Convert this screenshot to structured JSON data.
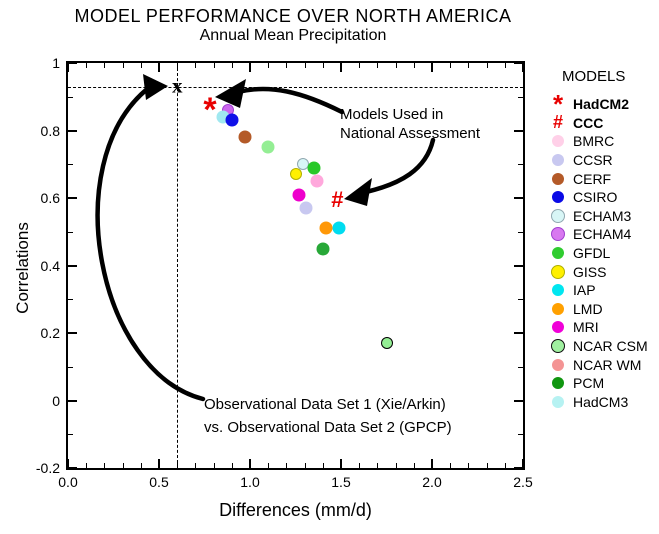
{
  "title": "MODEL PERFORMANCE OVER NORTH AMERICA",
  "subtitle": "Annual Mean Precipitation",
  "axes": {
    "x_label": "Differences (mm/d)",
    "y_label": "Correlations",
    "x_ticks": {
      "values": [
        0,
        0.5,
        1.0,
        1.5,
        2.0,
        2.5
      ],
      "labels": [
        "0.0",
        "0.5",
        "1.0",
        "1.5",
        "2.0",
        "2.5"
      ]
    },
    "y_ticks": {
      "values": [
        1,
        0.8,
        0.6,
        0.4,
        0.2,
        0,
        -0.2
      ],
      "labels": [
        "1",
        "0.8",
        "0.6",
        "0.4",
        "0.2",
        "0",
        "-0.2"
      ]
    },
    "x_minor_step": 0.1,
    "y_minor_step": 0.1
  },
  "legend": {
    "title": "MODELS",
    "items": [
      {
        "label": "HadCM2",
        "marker": "star",
        "color": "#E80000",
        "outline": null,
        "bold": true
      },
      {
        "label": "CCC",
        "marker": "hash",
        "color": "#E80000",
        "outline": null,
        "bold": true
      },
      {
        "label": "BMRC",
        "marker": "circle",
        "color": "#FFD0E8",
        "outline": null,
        "bold": false
      },
      {
        "label": "CCSR",
        "marker": "circle",
        "color": "#C8C8F0",
        "outline": null,
        "bold": false
      },
      {
        "label": "CERF",
        "marker": "circle",
        "color": "#B45A28",
        "outline": null,
        "bold": false
      },
      {
        "label": "CSIRO",
        "marker": "circle",
        "color": "#0A0AE6",
        "outline": null,
        "bold": false
      },
      {
        "label": "ECHAM3",
        "marker": "circle",
        "color": "#D8F6F6",
        "outline": "#90A8B0",
        "bold": false
      },
      {
        "label": "ECHAM4",
        "marker": "circle",
        "color": "#D878F0",
        "outline": "#A040D0",
        "bold": false
      },
      {
        "label": "GFDL",
        "marker": "circle",
        "color": "#30CC30",
        "outline": null,
        "bold": false
      },
      {
        "label": "GISS",
        "marker": "circle",
        "color": "#FFF000",
        "outline": "#B0B000",
        "bold": false
      },
      {
        "label": "IAP",
        "marker": "circle",
        "color": "#00E6F0",
        "outline": null,
        "bold": false
      },
      {
        "label": "LMD",
        "marker": "circle",
        "color": "#FFA000",
        "outline": null,
        "bold": false
      },
      {
        "label": "MRI",
        "marker": "circle",
        "color": "#F000D8",
        "outline": null,
        "bold": false
      },
      {
        "label": "NCAR CSM",
        "marker": "circle",
        "color": "#A0F0A0",
        "outline": "#101010",
        "bold": false
      },
      {
        "label": "NCAR WM",
        "marker": "circle",
        "color": "#F49494",
        "outline": null,
        "bold": false
      },
      {
        "label": "PCM",
        "marker": "circle",
        "color": "#109610",
        "outline": null,
        "bold": false
      },
      {
        "label": "HadCM3",
        "marker": "circle",
        "color": "#B6F2F2",
        "outline": null,
        "bold": false
      }
    ]
  },
  "annotations": {
    "models_note_line1": "Models Used in",
    "models_note_line2": "National Assessment",
    "obs_note_line1": "Observational Data Set 1 (Xie/Arkin)",
    "obs_note_line2": "vs. Observational Data Set 2 (GPCP)"
  },
  "chart_data": {
    "type": "scatter",
    "title": "MODEL PERFORMANCE OVER NORTH AMERICA",
    "subtitle": "Annual Mean Precipitation",
    "xlabel": "Differences (mm/d)",
    "ylabel": "Correlations",
    "x_range": [
      0,
      2.5
    ],
    "y_range": [
      -0.2,
      1
    ],
    "grid": false,
    "legend_position": "right",
    "reference_point": {
      "label": "Observational Data Set 1 vs Observational Data Set 2",
      "marker": "x",
      "x": 0.6,
      "y": 0.93
    },
    "dashed_lines": {
      "x": 0.6,
      "y": 0.93
    },
    "points": [
      {
        "model": "HadCM2",
        "x": 0.78,
        "y": 0.88,
        "marker": "star",
        "color": "#E80000",
        "outline": null
      },
      {
        "model": "CCC",
        "x": 1.48,
        "y": 0.59,
        "marker": "hash",
        "color": "#E80000",
        "outline": null
      },
      {
        "model": "ECHAM4",
        "x": 0.88,
        "y": 0.86,
        "marker": "circle",
        "color": "#CC66EE",
        "outline": "#A040D0"
      },
      {
        "model": "HadCM3",
        "x": 0.85,
        "y": 0.84,
        "marker": "circle",
        "color": "#A0E8F0",
        "outline": null
      },
      {
        "model": "CSIRO",
        "x": 0.9,
        "y": 0.83,
        "marker": "circle",
        "color": "#1010E8",
        "outline": null
      },
      {
        "model": "CERF",
        "x": 0.97,
        "y": 0.78,
        "marker": "circle",
        "color": "#B45A28",
        "outline": null
      },
      {
        "model": "NCAR WM",
        "x": 1.1,
        "y": 0.75,
        "marker": "circle",
        "color": "#94EE94",
        "outline": null
      },
      {
        "model": "ECHAM3",
        "x": 1.29,
        "y": 0.7,
        "marker": "circle",
        "color": "#D8F6F6",
        "outline": "#90A8B0"
      },
      {
        "model": "GFDL",
        "x": 1.35,
        "y": 0.69,
        "marker": "circle",
        "color": "#28C828",
        "outline": null
      },
      {
        "model": "GISS",
        "x": 1.25,
        "y": 0.67,
        "marker": "circle",
        "color": "#FFF000",
        "outline": "#B0B000"
      },
      {
        "model": "BMRC",
        "x": 1.37,
        "y": 0.65,
        "marker": "circle",
        "color": "#FFA8DC",
        "outline": null
      },
      {
        "model": "MRI",
        "x": 1.27,
        "y": 0.61,
        "marker": "circle",
        "color": "#EE00CC",
        "outline": null
      },
      {
        "model": "CCSR",
        "x": 1.31,
        "y": 0.57,
        "marker": "circle",
        "color": "#C8C8F0",
        "outline": null
      },
      {
        "model": "LMD",
        "x": 1.42,
        "y": 0.51,
        "marker": "circle",
        "color": "#FF9808",
        "outline": null
      },
      {
        "model": "IAP",
        "x": 1.49,
        "y": 0.51,
        "marker": "circle",
        "color": "#00DCF0",
        "outline": null
      },
      {
        "model": "PCM",
        "x": 1.4,
        "y": 0.45,
        "marker": "circle",
        "color": "#28A838",
        "outline": null
      },
      {
        "model": "NCAR CSM",
        "x": 1.75,
        "y": 0.17,
        "marker": "circle",
        "color": "#94EE94",
        "outline": "#000000"
      }
    ]
  }
}
